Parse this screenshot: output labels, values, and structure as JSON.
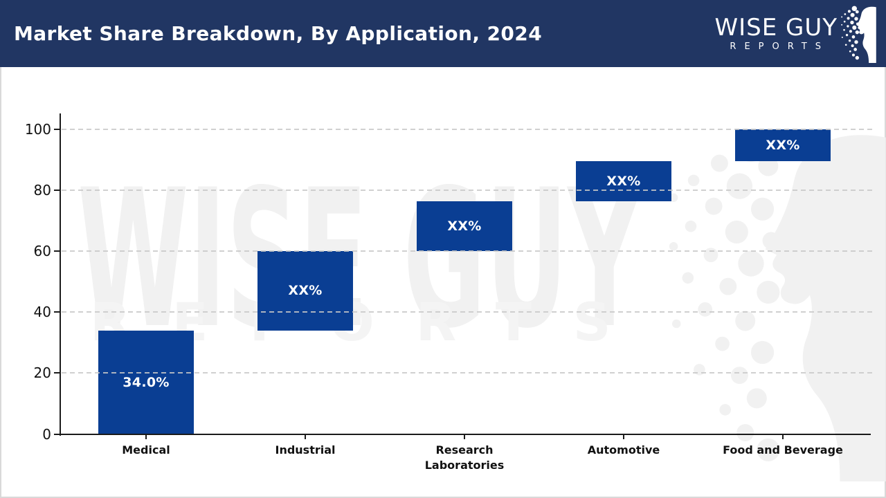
{
  "header": {
    "title": "Market Share Breakdown, By Application, 2024",
    "logo": {
      "name": "WISE GUY",
      "sub": "REPORTS"
    }
  },
  "watermark": {
    "name": "WISE GUY",
    "sub": "REPORTS"
  },
  "colors": {
    "header_bg": "#213663",
    "bar": "#0a3e93",
    "bar_label": "#ffffff",
    "axis": "#1a1a1a",
    "gridline": "#c8c8c8",
    "watermark": "#f1f1f1"
  },
  "chart_data": {
    "type": "bar",
    "variant": "waterfall",
    "title": "Market Share Breakdown, By Application, 2024",
    "categories": [
      "Medical",
      "Industrial",
      "Research\nLaboratories",
      "Automotive",
      "Food and Beverage"
    ],
    "segments": [
      {
        "category": "Medical",
        "start": 0,
        "end": 34,
        "value": 34.0,
        "label": "34.0%"
      },
      {
        "category": "Industrial",
        "start": 34,
        "end": 60,
        "value": 26.0,
        "label": "XX%"
      },
      {
        "category": "Research\nLaboratories",
        "start": 60,
        "end": 76.5,
        "value": 16.5,
        "label": "XX%"
      },
      {
        "category": "Automotive",
        "start": 76.5,
        "end": 89.5,
        "value": 13.0,
        "label": "XX%"
      },
      {
        "category": "Food and Beverage",
        "start": 89.5,
        "end": 100,
        "value": 10.5,
        "label": "XX%"
      }
    ],
    "yticks": [
      0,
      20,
      40,
      60,
      80,
      100
    ],
    "ylim": [
      0,
      105
    ],
    "xlabel": "",
    "ylabel": "",
    "grid": {
      "axis": "y",
      "style": "dashed",
      "over_bars": true
    },
    "legend": "none"
  }
}
